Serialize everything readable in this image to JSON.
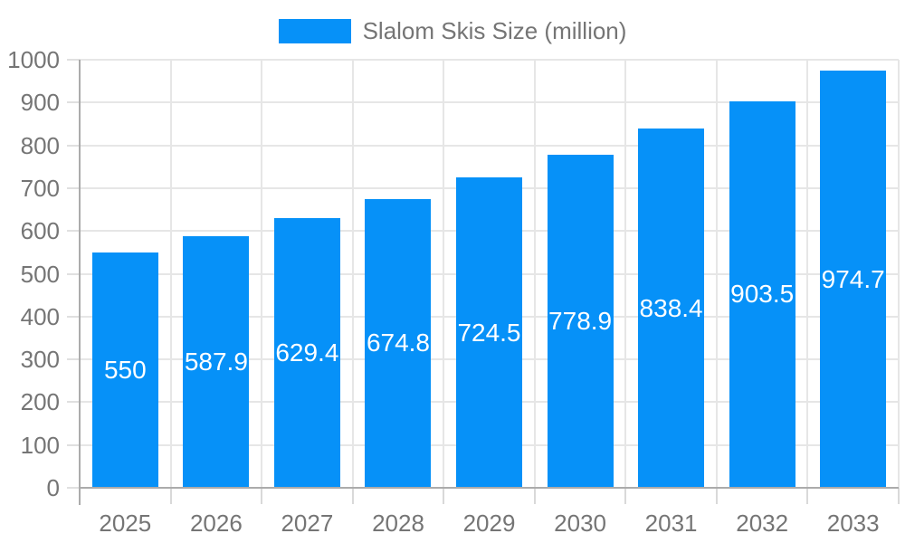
{
  "legend": {
    "label": "Slalom Skis Size (million)"
  },
  "chart_data": {
    "type": "bar",
    "title": "Slalom Skis Size (million)",
    "categories": [
      "2025",
      "2026",
      "2027",
      "2028",
      "2029",
      "2030",
      "2031",
      "2032",
      "2033"
    ],
    "series": [
      {
        "name": "Slalom Skis Size (million)",
        "values": [
          550,
          587.9,
          629.4,
          674.8,
          724.5,
          778.9,
          838.4,
          903.5,
          974.7
        ]
      }
    ],
    "xlabel": "",
    "ylabel": "",
    "ylim": [
      0,
      1000
    ],
    "ytick_step": 100,
    "yticks": [
      0,
      100,
      200,
      300,
      400,
      500,
      600,
      700,
      800,
      900,
      1000
    ],
    "grid": true,
    "legend_position": "top",
    "value_label_position": "inside-center",
    "colors": {
      "bar": "#0691f8",
      "value_label": "#ffffff",
      "axis_text": "#757575",
      "legend_text": "#757575",
      "gridline": "#e6e6e6",
      "y_tick": "#e0e0e0",
      "x_tick": "#d9d9d9",
      "axis_line": "#ababab",
      "background": "#ffffff"
    }
  }
}
